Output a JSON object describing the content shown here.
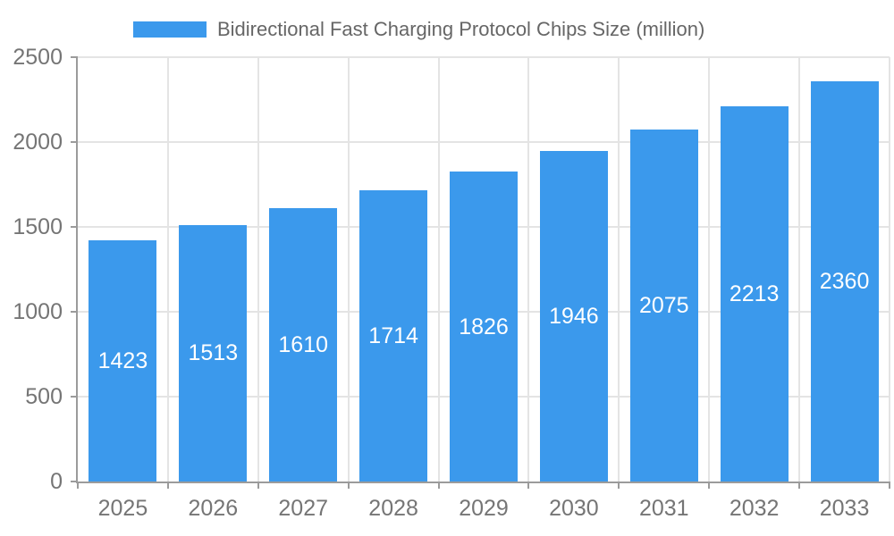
{
  "chart_data": {
    "type": "bar",
    "title": "Bidirectional Fast Charging Protocol Chips Size (million)",
    "categories": [
      "2025",
      "2026",
      "2027",
      "2028",
      "2029",
      "2030",
      "2031",
      "2032",
      "2033"
    ],
    "values": [
      1423,
      1513,
      1610,
      1714,
      1826,
      1946,
      2075,
      2213,
      2360
    ],
    "series": [
      {
        "name": "Bidirectional Fast Charging Protocol Chips Size (million)",
        "values": [
          1423,
          1513,
          1610,
          1714,
          1826,
          1946,
          2075,
          2213,
          2360
        ]
      }
    ],
    "xlabel": "",
    "ylabel": "",
    "ylim": [
      0,
      2500
    ],
    "y_ticks": [
      0,
      500,
      1000,
      1500,
      2000,
      2500
    ],
    "grid": true,
    "legend_position": "top",
    "bar_labels_inside": true,
    "colors": {
      "bar": "#3B99EC",
      "bar_label": "#FFFFFF",
      "title": "#666666",
      "tick_label": "#757575",
      "axis_line": "#9B9B9B",
      "grid_line": "#E4E4E4",
      "background": "#FFFFFF"
    }
  }
}
